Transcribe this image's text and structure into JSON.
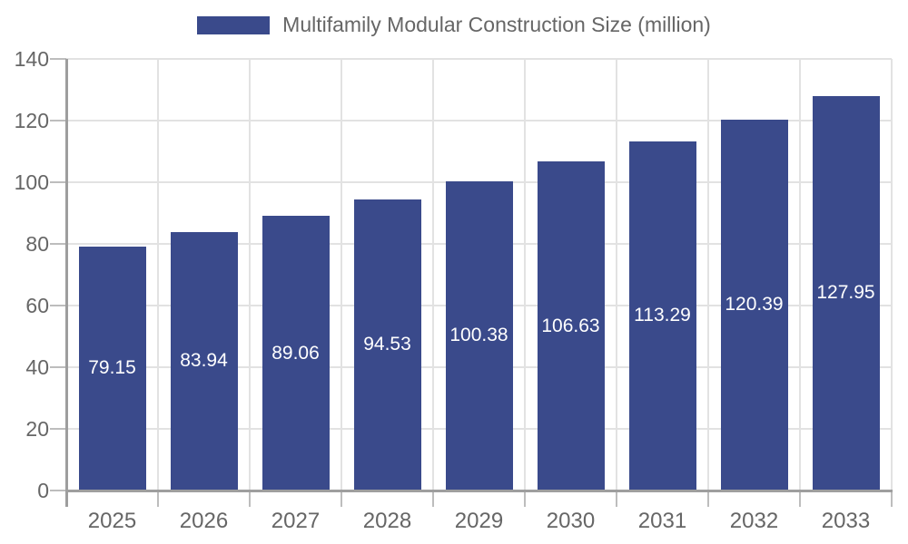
{
  "legend": {
    "label": "Multifamily Modular Construction Size (million)"
  },
  "chart_data": {
    "type": "bar",
    "title": "Multifamily Modular Construction Size (million)",
    "categories": [
      "2025",
      "2026",
      "2027",
      "2028",
      "2029",
      "2030",
      "2031",
      "2032",
      "2033"
    ],
    "series": [
      {
        "name": "Multifamily Modular Construction Size (million)",
        "values": [
          79.15,
          83.94,
          89.06,
          94.53,
          100.38,
          106.63,
          113.29,
          120.39,
          127.95
        ]
      }
    ],
    "value_labels": [
      "79.15",
      "83.94",
      "89.06",
      "94.53",
      "100.38",
      "106.63",
      "113.29",
      "120.39",
      "127.95"
    ],
    "xlabel": "",
    "ylabel": "",
    "ylim": [
      0,
      140
    ],
    "yticks": [
      0,
      20,
      40,
      60,
      80,
      100,
      120,
      140
    ],
    "grid": true,
    "legend_position": "top-center",
    "colors": {
      "bar": "#3A4A8B",
      "value_label": "#ffffff",
      "axis_line": "#9e9e9e",
      "gridline": "#e2e2e2",
      "tick": "#bdbdbd",
      "axis_text": "#666666",
      "legend_text": "#666666",
      "background": "#ffffff"
    }
  }
}
